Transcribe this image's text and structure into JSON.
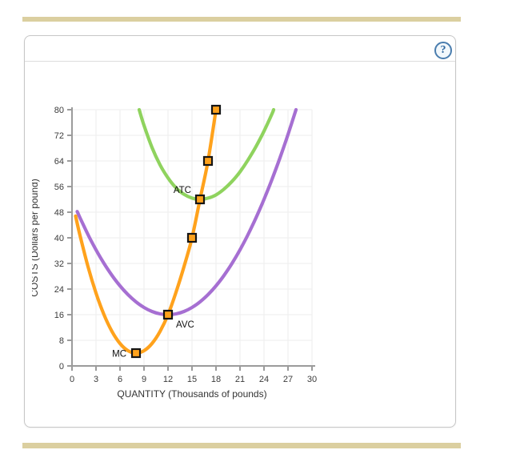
{
  "panel": {
    "help_label": "?"
  },
  "accent_color": "#dbcfa0",
  "chart_data": {
    "type": "line",
    "title": "",
    "xlabel": "QUANTITY (Thousands of pounds)",
    "ylabel": "COSTS (Dollars per pound)",
    "xlim": [
      0,
      30
    ],
    "ylim": [
      0,
      80
    ],
    "x_ticks": [
      0,
      3,
      6,
      9,
      12,
      15,
      18,
      21,
      24,
      27,
      30
    ],
    "y_ticks": [
      0,
      8,
      16,
      24,
      32,
      40,
      48,
      56,
      64,
      72,
      80
    ],
    "grid": true,
    "legend": "inline-curve-labels",
    "colors": {
      "grid": "#ededed",
      "axis": "#9b9b9b",
      "tick_label": "#3c3c3c",
      "curve_label": "#111111"
    },
    "series": [
      {
        "name": "ATC",
        "color": "#8fd35e",
        "label_anchor": "end",
        "label_pos": {
          "x": 14.9,
          "y": 54.0
        },
        "points": [
          [
            8.4,
            80
          ],
          [
            9,
            75.1
          ],
          [
            10,
            68.2
          ],
          [
            11,
            62.8
          ],
          [
            12,
            58.7
          ],
          [
            13,
            55.6
          ],
          [
            14,
            53.6
          ],
          [
            15,
            52.4
          ],
          [
            16,
            52
          ],
          [
            17,
            52.4
          ],
          [
            18,
            53.4
          ],
          [
            19,
            55.2
          ],
          [
            20,
            57.6
          ],
          [
            21,
            60.6
          ],
          [
            22,
            64.3
          ],
          [
            23,
            68.5
          ],
          [
            24,
            73.3
          ],
          [
            25,
            78.7
          ],
          [
            25.2,
            80
          ]
        ]
      },
      {
        "name": "AVC",
        "color": "#a66fd2",
        "label_anchor": "start",
        "label_pos": {
          "x": 13.0,
          "y": 12.0
        },
        "points": [
          [
            0.65,
            48.2
          ],
          [
            1,
            46.25
          ],
          [
            2,
            41
          ],
          [
            3,
            36.25
          ],
          [
            4,
            32
          ],
          [
            5,
            28.25
          ],
          [
            6,
            25
          ],
          [
            7,
            22.25
          ],
          [
            8,
            20
          ],
          [
            9,
            18.25
          ],
          [
            10,
            17
          ],
          [
            11,
            16.25
          ],
          [
            12,
            16
          ],
          [
            13,
            16.25
          ],
          [
            14,
            17
          ],
          [
            15,
            18.25
          ],
          [
            16,
            20
          ],
          [
            17,
            22.25
          ],
          [
            18,
            25
          ],
          [
            19,
            28.25
          ],
          [
            20,
            32
          ],
          [
            21,
            36.25
          ],
          [
            22,
            41
          ],
          [
            23,
            46.25
          ],
          [
            24,
            52
          ],
          [
            25,
            58.25
          ],
          [
            26,
            65
          ],
          [
            27,
            72.25
          ],
          [
            28,
            80
          ]
        ]
      },
      {
        "name": "MC",
        "color": "#ffa21c",
        "label_anchor": "end",
        "label_pos": {
          "x": 6.8,
          "y": 2.9
        },
        "points": [
          [
            0.45,
            46.8
          ],
          [
            1,
            40.75
          ],
          [
            2,
            31
          ],
          [
            3,
            22.75
          ],
          [
            4,
            16
          ],
          [
            5,
            10.75
          ],
          [
            6,
            7
          ],
          [
            7,
            4.75
          ],
          [
            8,
            4
          ],
          [
            9,
            4.75
          ],
          [
            10,
            7
          ],
          [
            11,
            10.75
          ],
          [
            12,
            16
          ],
          [
            13,
            23
          ],
          [
            14,
            31
          ],
          [
            15,
            40
          ],
          [
            16,
            52
          ],
          [
            17,
            64
          ],
          [
            18,
            80
          ]
        ]
      }
    ],
    "markers": {
      "shape": "square",
      "series": "MC",
      "color": "#ffa21c",
      "border": "#151515",
      "points": [
        [
          8,
          4
        ],
        [
          12,
          16
        ],
        [
          15,
          40
        ],
        [
          16,
          52
        ],
        [
          17,
          64
        ],
        [
          18,
          80
        ]
      ]
    }
  }
}
